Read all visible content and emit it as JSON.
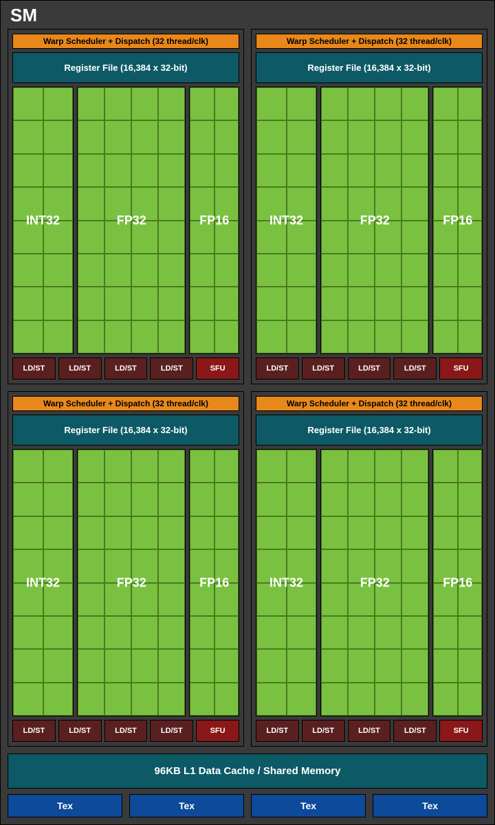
{
  "title": "SM",
  "warp_label": "Warp Scheduler + Dispatch (32 thread/clk)",
  "regfile_label": "Register File (16,384 x 32-bit)",
  "cores": {
    "int32": {
      "label": "INT32",
      "cols": 2,
      "rows": 8
    },
    "fp32": {
      "label": "FP32",
      "cols": 4,
      "rows": 8
    },
    "fp16": {
      "label": "FP16",
      "cols": 2,
      "rows": 8
    }
  },
  "ldst_label": "LD/ST",
  "ldst_count": 4,
  "sfu_label": "SFU",
  "l1_label": "96KB L1 Data Cache / Shared Memory",
  "tex_label": "Tex",
  "tex_count": 4,
  "quad_count": 4,
  "colors": {
    "bg": "#3a3a3a",
    "warp": "#e8881b",
    "regfile": "#0d5a66",
    "core_fill": "#7ac142",
    "core_border": "#4a7a1a",
    "ldst": "#5a2020",
    "sfu": "#8a1818",
    "l1": "#0d5a66",
    "tex": "#0d4a9a",
    "border": "#000000",
    "text_light": "#ffffff",
    "text_dark": "#000000"
  },
  "fonts": {
    "title_size": 26,
    "warp_size": 12,
    "regfile_size": 13,
    "core_label_size": 18,
    "unit_size": 11,
    "l1_size": 15,
    "tex_size": 14
  }
}
